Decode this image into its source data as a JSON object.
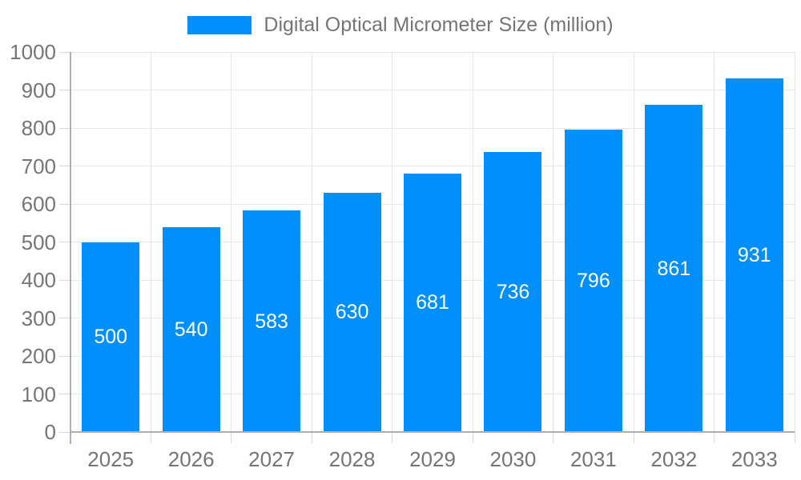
{
  "legend": {
    "label": "Digital Optical Micrometer Size (million)"
  },
  "chart_data": {
    "type": "bar",
    "title": "Digital Optical Micrometer Size (million)",
    "categories": [
      "2025",
      "2026",
      "2027",
      "2028",
      "2029",
      "2030",
      "2031",
      "2032",
      "2033"
    ],
    "values": [
      500,
      540,
      583,
      630,
      681,
      736,
      796,
      861,
      931
    ],
    "xlabel": "",
    "ylabel": "",
    "ylim": [
      0,
      1000
    ],
    "ytick_step": 100,
    "grid": true,
    "legend_position": "top-center",
    "value_labels": "inside-center",
    "colors": {
      "bar": "#008FFB",
      "bar_value_text": "#ffffff",
      "axis_text": "#757575",
      "legend_text": "#757575",
      "gridline": "#e6e6e6",
      "tick": "#d9d9d9",
      "axis_line": "#aeaeae",
      "background": "#ffffff"
    }
  }
}
